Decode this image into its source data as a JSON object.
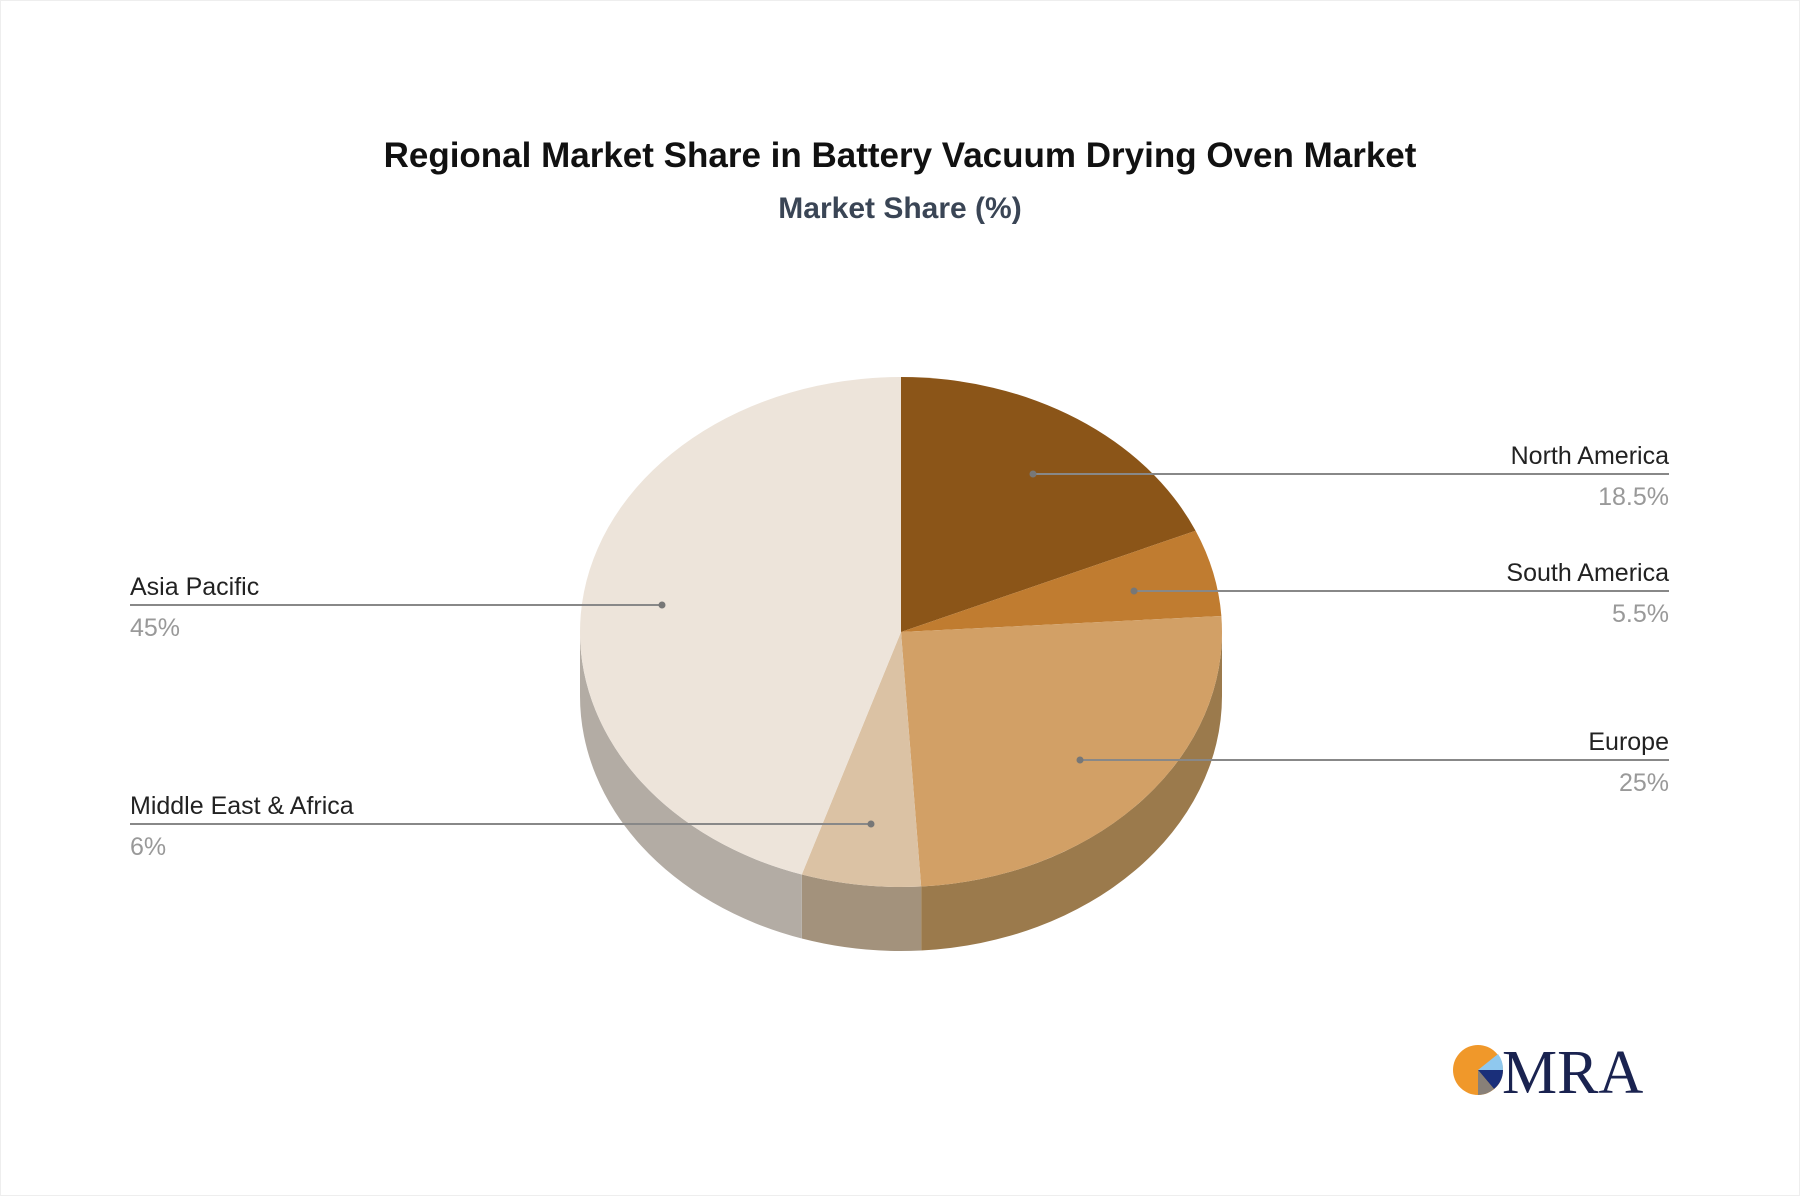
{
  "chart_data": {
    "type": "pie",
    "style": "3d",
    "title": "Regional Market Share in Battery Vacuum Drying Oven Market",
    "subtitle": "Market Share (%)",
    "slices": [
      {
        "label": "North America",
        "value": 18.5,
        "display": "18.5%",
        "color": "#8b5518",
        "side_color": "#6e4412",
        "label_side": "right"
      },
      {
        "label": "South America",
        "value": 5.5,
        "display": "5.5%",
        "color": "#c07c30",
        "side_color": "#9a6426",
        "label_side": "right"
      },
      {
        "label": "Europe",
        "value": 25,
        "display": "25%",
        "color": "#d2a066",
        "side_color": "#9b7a4c",
        "label_side": "right"
      },
      {
        "label": "Middle East & Africa",
        "value": 6,
        "display": "6%",
        "color": "#dbc2a4",
        "side_color": "#a3927c",
        "label_side": "left"
      },
      {
        "label": "Asia Pacific",
        "value": 45,
        "display": "45%",
        "color": "#ede4da",
        "side_color": "#b3aca4",
        "label_side": "left"
      }
    ],
    "start": "12 o'clock",
    "direction": "clockwise",
    "legend": "none"
  },
  "logo": {
    "text": "MRA",
    "colors": [
      "#f0982a",
      "#1a2f7a",
      "#8fc8ee",
      "#888078",
      "#1a2350"
    ]
  }
}
